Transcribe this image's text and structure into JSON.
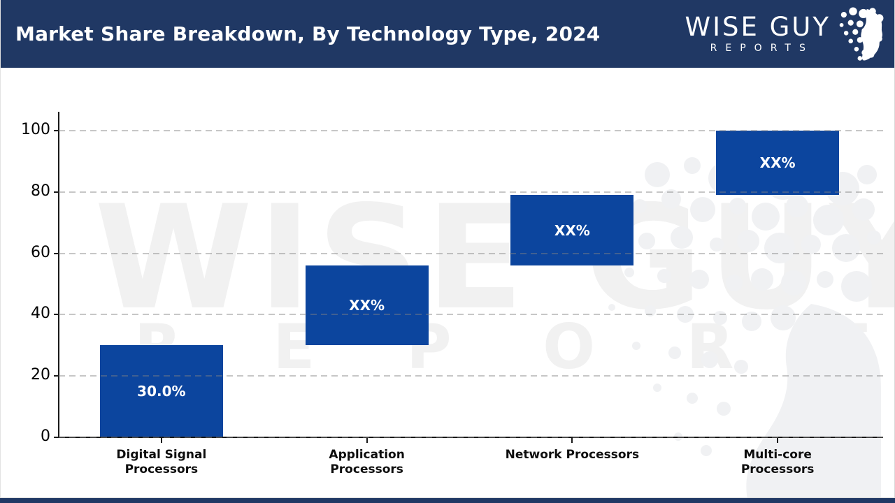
{
  "header": {
    "title": "Market Share Breakdown, By Technology Type, 2024",
    "logo": {
      "line1": "WISE GUY",
      "line2": "REPORTS"
    }
  },
  "watermark": {
    "line1": "WISE GUY",
    "line2": "R E P O R T S"
  },
  "colors": {
    "header_bg": "#203864",
    "footer_bg": "#203864",
    "bar": "#0c459e",
    "bar_label_text": "#ffffff",
    "gridline": "#d0d0d0",
    "axis": "#1a1a1a",
    "watermark": "#f1f1f1"
  },
  "chart_data": {
    "type": "bar",
    "subtype": "waterfall",
    "title": "Market Share Breakdown, By Technology Type, 2024",
    "categories": [
      "Digital Signal\nProcessors",
      "Application\nProcessors",
      "Network Processors",
      "Multi-core\nProcessors"
    ],
    "segments": [
      {
        "category": "Digital Signal Processors",
        "base": 0,
        "top": 30,
        "value": 30,
        "label": "30.0%"
      },
      {
        "category": "Application Processors",
        "base": 30,
        "top": 56,
        "value": 26,
        "label": "XX%"
      },
      {
        "category": "Network Processors",
        "base": 56,
        "top": 79,
        "value": 23,
        "label": "XX%"
      },
      {
        "category": "Multi-core Processors",
        "base": 79,
        "top": 100,
        "value": 21,
        "label": "XX%"
      }
    ],
    "ylabel": "",
    "xlabel": "",
    "yticks": [
      0,
      20,
      40,
      60,
      80,
      100
    ],
    "ylim": [
      0,
      100
    ],
    "grid": "horizontal-dashed",
    "legend": "none",
    "bar_color": "#0c459e"
  }
}
